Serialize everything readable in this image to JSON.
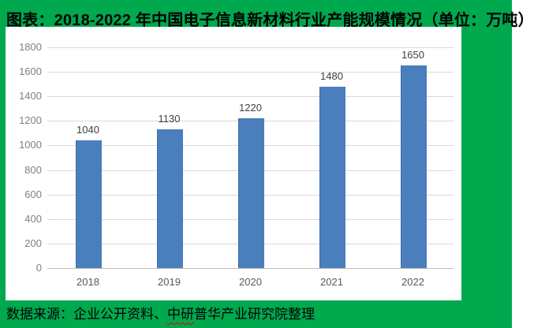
{
  "page": {
    "background_color": "#00A84E",
    "title": "图表：2018-2022 年中国电子信息新材料行业产能规模情况（单位：万吨）",
    "source": {
      "prefix": "数据来源：企业公开资料、",
      "flagged_word": "中研",
      "suffix": "普华产业研究院整理"
    }
  },
  "chart_data": {
    "type": "bar",
    "title": "",
    "xlabel": "",
    "ylabel": "",
    "categories": [
      "2018",
      "2019",
      "2020",
      "2021",
      "2022"
    ],
    "values": [
      1040,
      1130,
      1220,
      1480,
      1650
    ],
    "ylim": [
      0,
      1800
    ],
    "yticks": [
      0,
      200,
      400,
      600,
      800,
      1000,
      1200,
      1400,
      1600,
      1800
    ],
    "grid": true,
    "legend_position": "none",
    "colors": {
      "bar_fill": "#4A7EBD",
      "bar_edge": "#3C6DA5",
      "gridline": "#D9D9D9",
      "axis_line": "#BFBFBF",
      "ytick_label": "#808080",
      "xtick_label": "#595959",
      "value_label": "#404040",
      "plot_background": "#FFFFFF"
    }
  }
}
